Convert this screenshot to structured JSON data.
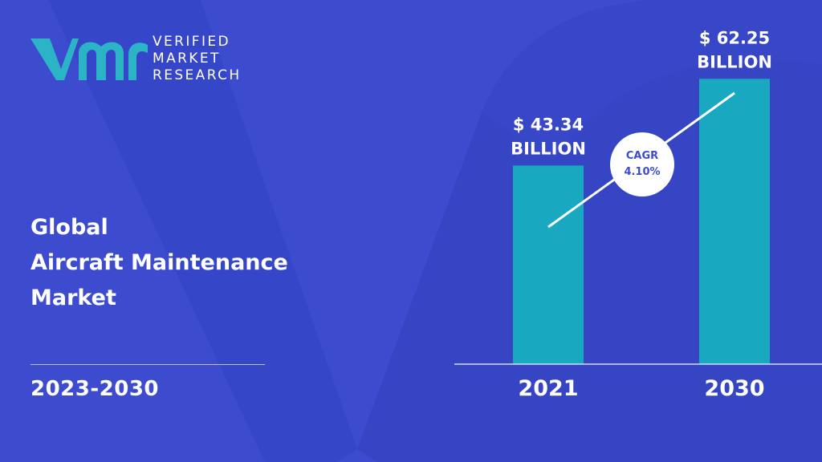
{
  "logo": {
    "line1": "VERIFIED",
    "line2": "MARKET",
    "line3": "RESEARCH",
    "colors": {
      "mark": "#2bb3c6",
      "text": "#ffffff"
    }
  },
  "title": {
    "line1": "Global",
    "line2": "Aircraft Maintenance",
    "line3": "Market"
  },
  "forecast_period": "2023-2030",
  "cagr": {
    "label": "CAGR",
    "value": "4.10%"
  },
  "colors": {
    "background": "#3d4ccf",
    "background_shape": "#3444c4",
    "bar": "#18a9c1",
    "text": "#ffffff",
    "cagr_text": "#3d4ccf"
  },
  "chart_data": {
    "type": "bar",
    "categories": [
      "2021",
      "2030"
    ],
    "values": [
      43.34,
      62.25
    ],
    "value_labels": [
      [
        "$ 43.34",
        "BILLION"
      ],
      [
        "$ 62.25",
        "BILLION"
      ]
    ],
    "unit": "BILLION",
    "ylim": [
      0,
      70
    ],
    "grid": false,
    "legend": "none"
  }
}
